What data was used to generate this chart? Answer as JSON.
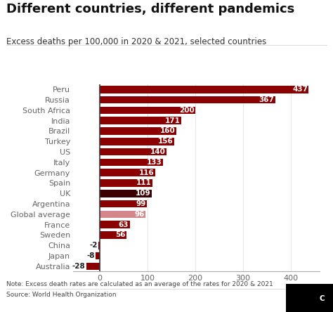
{
  "title": "Different countries, different pandemics",
  "subtitle": "Excess deaths per 100,000 in 2020 & 2021, selected countries",
  "note": "Note: Excess death rates are calculated as an average of the rates for 2020 & 2021",
  "source": "Source: World Health Organization",
  "countries": [
    "Peru",
    "Russia",
    "South Africa",
    "India",
    "Brazil",
    "Turkey",
    "US",
    "Italy",
    "Germany",
    "Spain",
    "UK",
    "Argentina",
    "Global average",
    "France",
    "Sweden",
    "China",
    "Japan",
    "Australia"
  ],
  "values": [
    437,
    367,
    200,
    171,
    160,
    156,
    140,
    133,
    116,
    111,
    109,
    99,
    96,
    63,
    56,
    -2,
    -8,
    -28
  ],
  "bar_colors": [
    "#8b0000",
    "#8b0000",
    "#8b0000",
    "#8b0000",
    "#8b0000",
    "#8b0000",
    "#8b0000",
    "#8b0000",
    "#8b0000",
    "#8b0000",
    "#3d0000",
    "#8b0000",
    "#d4868a",
    "#8b0000",
    "#8b0000",
    "#8b0000",
    "#8b0000",
    "#8b0000"
  ],
  "label_color_inside": "#ffffff",
  "label_color_outside": "#222222",
  "background_color": "#ffffff",
  "title_fontsize": 13,
  "subtitle_fontsize": 8.5,
  "tick_label_fontsize": 8,
  "bar_label_fontsize": 7.5,
  "note_fontsize": 6.5,
  "source_fontsize": 6.5,
  "xlim": [
    -55,
    460
  ]
}
